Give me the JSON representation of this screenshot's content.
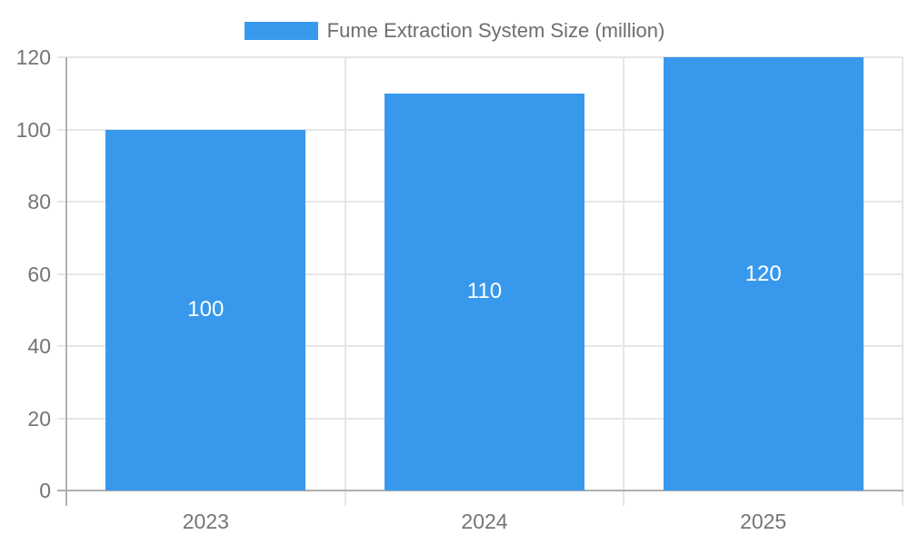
{
  "legend": {
    "label": "Fume Extraction System Size (million)"
  },
  "chart_data": {
    "type": "bar",
    "title": "Fume Extraction System Size (million)",
    "categories": [
      "2023",
      "2024",
      "2025"
    ],
    "series": [
      {
        "name": "Fume Extraction System Size (million)",
        "values": [
          100,
          110,
          120
        ]
      }
    ],
    "value_labels": [
      "100",
      "110",
      "120"
    ],
    "xlabel": "",
    "ylabel": "",
    "ylim": [
      0,
      120
    ],
    "yticks": [
      0,
      20,
      40,
      60,
      80,
      100,
      120
    ],
    "ytick_labels": [
      "0",
      "20",
      "40",
      "60",
      "80",
      "100",
      "120"
    ],
    "grid": true,
    "legend_position": "top",
    "colors": {
      "bar": "#3899ec",
      "gridline": "#e6e6e6",
      "axis": "#b0b0b0",
      "tick_label": "#757575",
      "legend_label": "#6e6e6e",
      "value_label": "#ffffff",
      "background": "#ffffff"
    }
  }
}
